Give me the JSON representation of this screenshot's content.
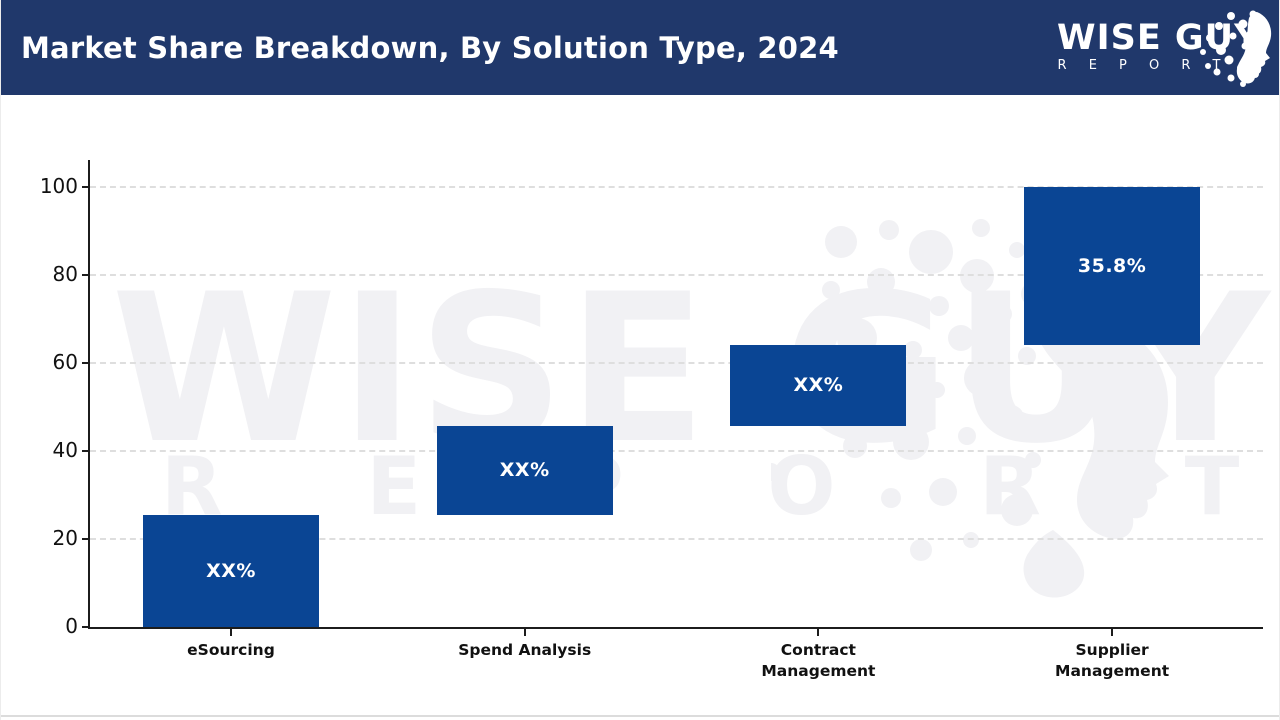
{
  "header": {
    "title": "Market Share Breakdown, By Solution Type, 2024"
  },
  "brand": {
    "line1": "WISE GUY",
    "line2": "R E P O R T S",
    "navy": "#20386b"
  },
  "watermark": {
    "line1": "WISE GUY",
    "line2": "R E P O R T S"
  },
  "chart_data": {
    "type": "bar",
    "subtype": "waterfall",
    "title": "Market Share Breakdown, By Solution Type, 2024",
    "categories": [
      "eSourcing",
      "Spend Analysis",
      "Contract Management",
      "Supplier Management"
    ],
    "segments": [
      {
        "category": "eSourcing",
        "start": 0,
        "end": 25.5,
        "label": "XX%"
      },
      {
        "category": "Spend Analysis",
        "start": 25.5,
        "end": 45.7,
        "label": "XX%"
      },
      {
        "category": "Contract Management",
        "start": 45.7,
        "end": 64.2,
        "label": "XX%"
      },
      {
        "category": "Supplier Management",
        "start": 64.2,
        "end": 100,
        "label": "35.8%"
      }
    ],
    "yticks": [
      0,
      20,
      40,
      60,
      80,
      100
    ],
    "ylim": [
      0,
      105
    ],
    "xlabel": "",
    "ylabel": "",
    "grid": "horizontal-dashed",
    "legend": "none",
    "bar_color": "#0a4594",
    "bar_label_color": "#ffffff",
    "axis_color": "#1c1c1c"
  }
}
